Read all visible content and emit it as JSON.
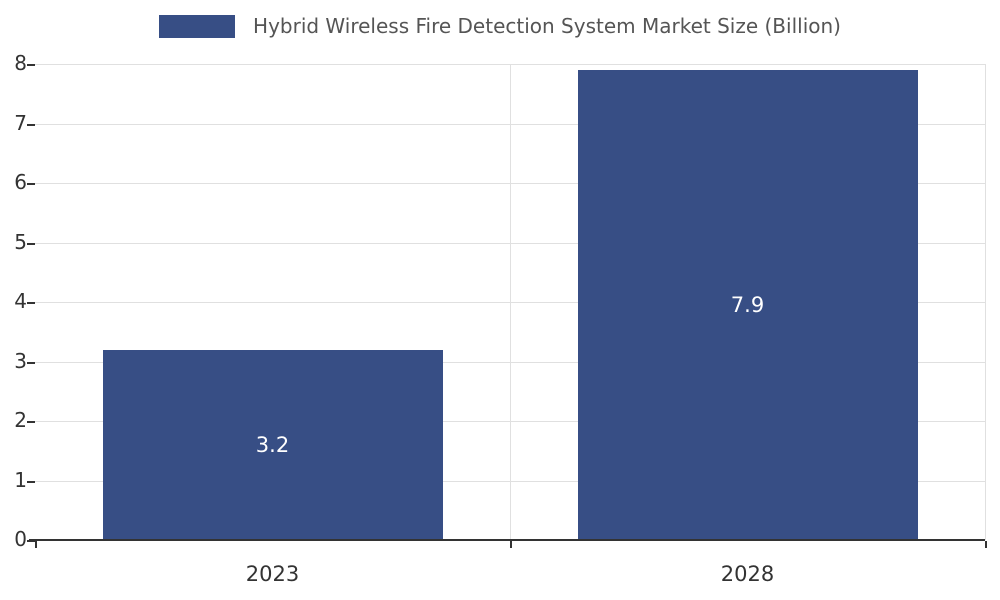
{
  "chart_data": {
    "type": "bar",
    "title": "Hybrid Wireless Fire Detection System Market Size (Billion)",
    "categories": [
      "2023",
      "2028"
    ],
    "values": [
      3.2,
      7.9
    ],
    "value_labels": [
      "3.2",
      "7.9"
    ],
    "xlabel": "",
    "ylabel": "",
    "ylim": [
      0,
      8
    ],
    "y_tick_step": 1,
    "y_tick_labels": [
      "0",
      "1",
      "2",
      "3",
      "4",
      "5",
      "6",
      "7",
      "8"
    ],
    "grid": true,
    "legend_position": "top",
    "colors": {
      "bar": "#374e85",
      "grid": "#e0e0e0",
      "axis": "#333333",
      "tick_label": "#333333",
      "title": "#555555",
      "value_label": "#ffffff",
      "background": "#ffffff"
    }
  }
}
